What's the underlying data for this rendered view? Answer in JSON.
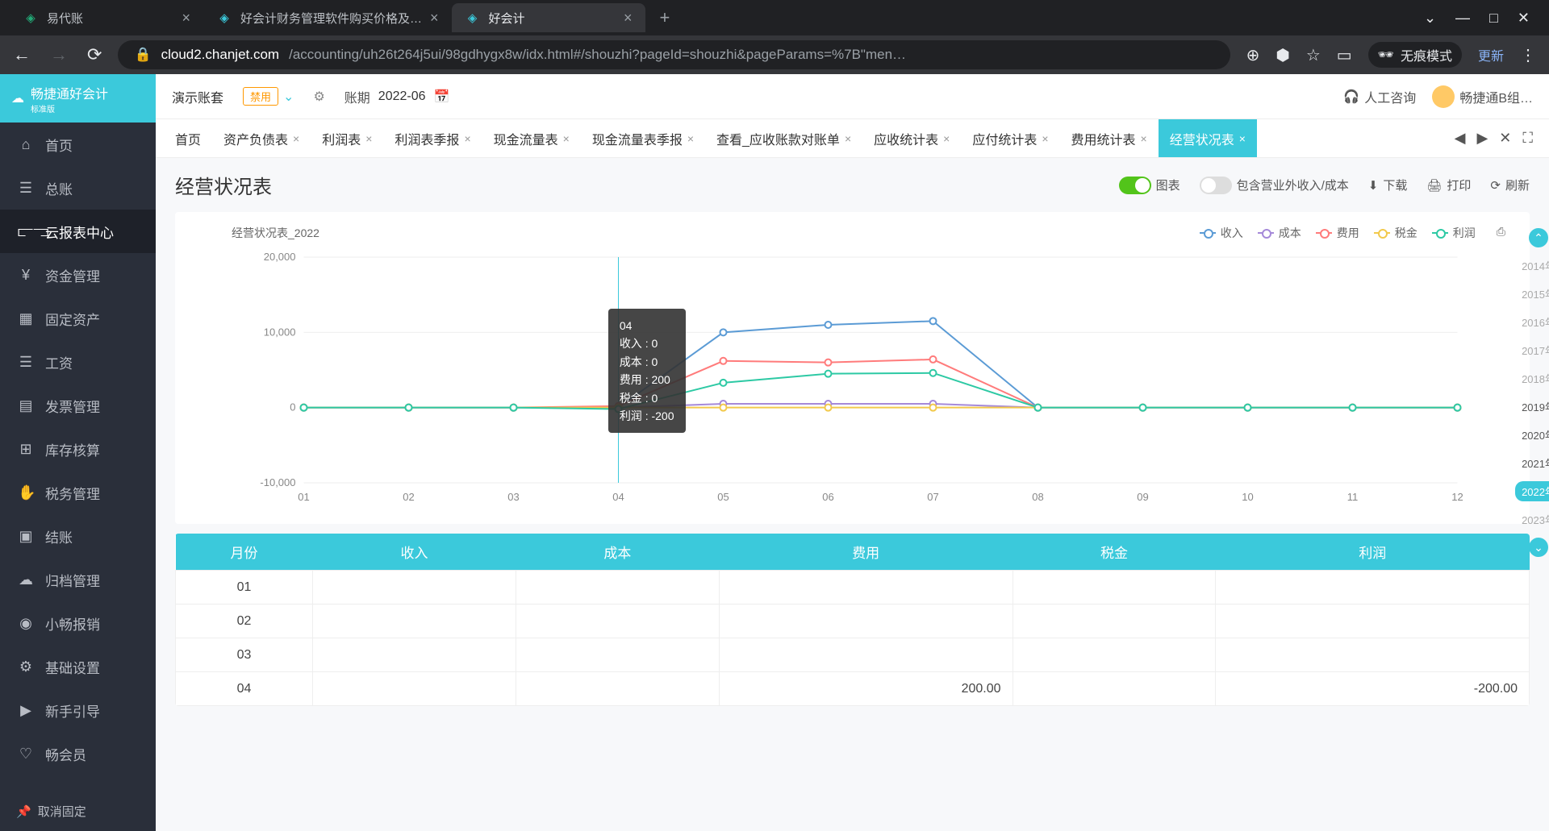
{
  "browser": {
    "tabs": [
      {
        "title": "易代账",
        "favicon_color": "#2a7"
      },
      {
        "title": "好会计财务管理软件购买价格及…",
        "favicon_color": "#3bc9db"
      },
      {
        "title": "好会计",
        "favicon_color": "#3bc9db"
      }
    ],
    "active_tab": 2,
    "url_host": "cloud2.chanjet.com",
    "url_path": "/accounting/uh26t264j5ui/98gdhygx8w/idx.html#/shouzhi?pageId=shouzhi&pageParams=%7B\"men…",
    "incognito_label": "无痕模式",
    "update_label": "更新"
  },
  "app": {
    "logo_text": "畅捷通好会计",
    "logo_edition": "标准版",
    "account_name": "演示账套",
    "tag_label": "禁用",
    "period_label": "账期",
    "period_value": "2022-06",
    "support_label": "人工咨询",
    "user_name": "畅捷通B组…"
  },
  "sidebar": {
    "items": [
      {
        "icon": "⌂",
        "label": "首页"
      },
      {
        "icon": "☰",
        "label": "总账"
      },
      {
        "icon": "⫍⫎",
        "label": "云报表中心"
      },
      {
        "icon": "¥",
        "label": "资金管理"
      },
      {
        "icon": "▦",
        "label": "固定资产"
      },
      {
        "icon": "☰",
        "label": "工资"
      },
      {
        "icon": "▤",
        "label": "发票管理"
      },
      {
        "icon": "⊞",
        "label": "库存核算"
      },
      {
        "icon": "✋",
        "label": "税务管理"
      },
      {
        "icon": "▣",
        "label": "结账"
      },
      {
        "icon": "☁",
        "label": "归档管理"
      },
      {
        "icon": "◉",
        "label": "小畅报销"
      },
      {
        "icon": "⚙",
        "label": "基础设置"
      },
      {
        "icon": "▶",
        "label": "新手引导"
      },
      {
        "icon": "♡",
        "label": "畅会员"
      }
    ],
    "active_index": 2,
    "bottom_label": "取消固定"
  },
  "tabs": {
    "items": [
      "首页",
      "资产负债表",
      "利润表",
      "利润表季报",
      "现金流量表",
      "现金流量表季报",
      "查看_应收账款对账单",
      "应收统计表",
      "应付统计表",
      "费用统计表",
      "经营状况表"
    ],
    "active_index": 10
  },
  "page": {
    "title": "经营状况表",
    "toggle_chart_label": "图表",
    "toggle_extra_label": "包含营业外收入/成本",
    "download_label": "下载",
    "print_label": "打印",
    "refresh_label": "刷新"
  },
  "chart": {
    "title": "经营状况表_2022",
    "legend": [
      {
        "name": "收入",
        "color": "#5b9bd5"
      },
      {
        "name": "成本",
        "color": "#a589d9"
      },
      {
        "name": "费用",
        "color": "#ff7b7b"
      },
      {
        "name": "税金",
        "color": "#f2c94c"
      },
      {
        "name": "利润",
        "color": "#2dc9a4"
      }
    ],
    "x_labels": [
      "01",
      "02",
      "03",
      "04",
      "05",
      "06",
      "07",
      "08",
      "09",
      "10",
      "11",
      "12"
    ],
    "y_ticks": [
      -10000,
      0,
      10000,
      20000
    ],
    "ylim": [
      -10000,
      20000
    ],
    "series": {
      "收入": [
        0,
        0,
        0,
        0,
        10000,
        11000,
        11500,
        0,
        0,
        0,
        0,
        0
      ],
      "成本": [
        0,
        0,
        0,
        0,
        500,
        500,
        500,
        0,
        0,
        0,
        0,
        0
      ],
      "费用": [
        0,
        0,
        0,
        200,
        6200,
        6000,
        6400,
        0,
        0,
        0,
        0,
        0
      ],
      "税金": [
        0,
        0,
        0,
        0,
        0,
        0,
        0,
        0,
        0,
        0,
        0,
        0
      ],
      "利润": [
        0,
        0,
        0,
        -200,
        3300,
        4500,
        4600,
        0,
        0,
        0,
        0,
        0
      ]
    },
    "grid_color": "#eeeeee",
    "axis_color": "#cccccc",
    "hover_index": 3,
    "tooltip": {
      "header": "04",
      "rows": [
        "收入 : 0",
        "成本 : 0",
        "费用 : 200",
        "税金 : 0",
        "利润 : -200"
      ]
    },
    "years": [
      "2014年",
      "2015年",
      "2016年",
      "2017年",
      "2018年",
      "2019年",
      "2020年",
      "2021年",
      "2022年",
      "2023年"
    ],
    "current_year_index": 8,
    "near_years": [
      5,
      6,
      7
    ]
  },
  "table": {
    "columns": [
      "月份",
      "收入",
      "成本",
      "费用",
      "税金",
      "利润"
    ],
    "column_align": [
      "center",
      "right",
      "right",
      "right",
      "right",
      "right"
    ],
    "rows": [
      {
        "month": "01",
        "收入": "",
        "成本": "",
        "费用": "",
        "税金": "",
        "利润": ""
      },
      {
        "month": "02",
        "收入": "",
        "成本": "",
        "费用": "",
        "税金": "",
        "利润": ""
      },
      {
        "month": "03",
        "收入": "",
        "成本": "",
        "费用": "",
        "税金": "",
        "利润": ""
      },
      {
        "month": "04",
        "收入": "",
        "成本": "",
        "费用": "200.00",
        "税金": "",
        "利润": "-200.00"
      }
    ]
  }
}
